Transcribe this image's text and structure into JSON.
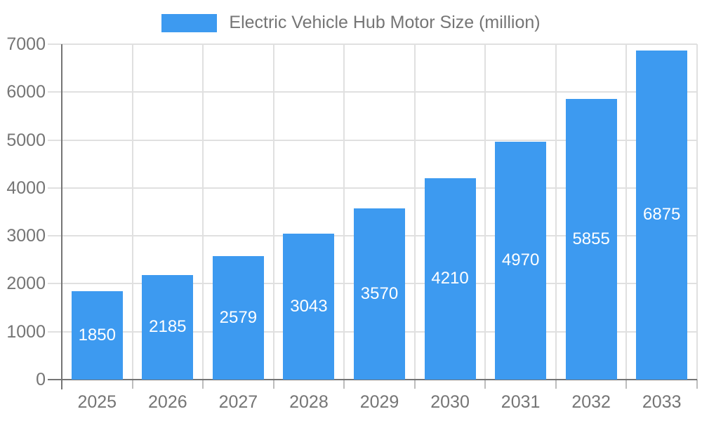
{
  "chart_data": {
    "type": "bar",
    "series_name": "Electric Vehicle Hub Motor Size (million)",
    "categories": [
      "2025",
      "2026",
      "2027",
      "2028",
      "2029",
      "2030",
      "2031",
      "2032",
      "2033"
    ],
    "values": [
      1850,
      2185,
      2579,
      3043,
      3570,
      4210,
      4970,
      5855,
      6875
    ],
    "title": "",
    "xlabel": "",
    "ylabel": "",
    "ylim": [
      0,
      7000
    ],
    "yticks": [
      0,
      1000,
      2000,
      3000,
      4000,
      5000,
      6000,
      7000
    ],
    "grid": true,
    "legend_position": "top",
    "colors": {
      "bar": "#3D9AF0",
      "grid": "#E0E0E0",
      "axis": "#757575",
      "label": "#757575",
      "tick": "#BDBDBD",
      "value_label": "#FFFFFF"
    }
  }
}
